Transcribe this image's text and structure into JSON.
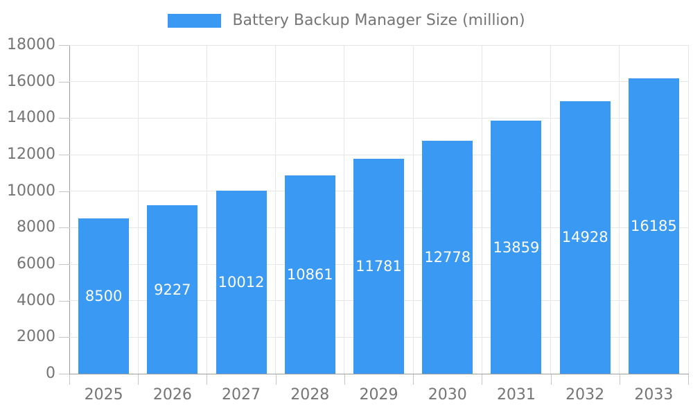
{
  "chart_data": {
    "type": "bar",
    "title": "Battery Backup Manager Size (million)",
    "legend": [
      "Battery Backup Manager Size (million)"
    ],
    "legend_position": "top-center",
    "categories": [
      "2025",
      "2026",
      "2027",
      "2028",
      "2029",
      "2030",
      "2031",
      "2032",
      "2033"
    ],
    "series": [
      {
        "name": "Battery Backup Manager Size (million)",
        "values": [
          8500,
          9227,
          10012,
          10861,
          11781,
          12778,
          13859,
          14928,
          16185
        ]
      }
    ],
    "xlabel": "",
    "ylabel": "",
    "ylim": [
      0,
      18000
    ],
    "y_tick_step": 2000,
    "y_tick_labels": [
      "0",
      "2000",
      "4000",
      "6000",
      "8000",
      "10000",
      "12000",
      "14000",
      "16000",
      "18000"
    ],
    "grid": true,
    "bar_color": "#3A99F2",
    "bar_value_label_color": "#FFFFFF",
    "axis_text_color": "#757575"
  }
}
